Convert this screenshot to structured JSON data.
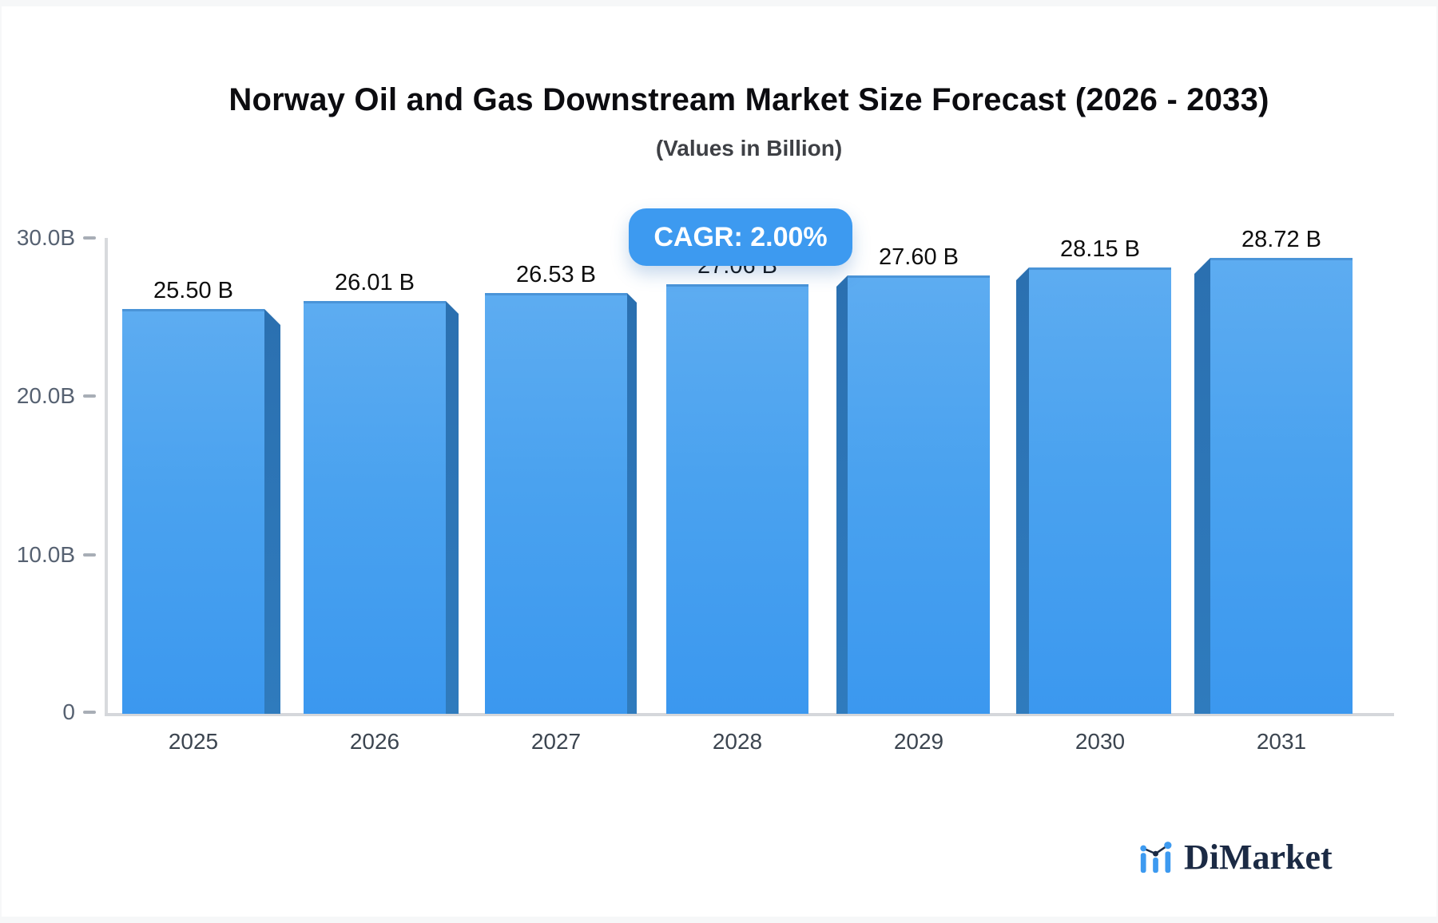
{
  "chart_data": {
    "type": "bar",
    "title": "Norway Oil and Gas Downstream Market Size Forecast (2026 - 2033)",
    "subtitle": "(Values in Billion)",
    "categories": [
      "2025",
      "2026",
      "2027",
      "2028",
      "2029",
      "2030",
      "2031"
    ],
    "values": [
      25.5,
      26.01,
      26.53,
      27.06,
      27.6,
      28.15,
      28.72
    ],
    "value_labels": [
      "25.50 B",
      "26.01 B",
      "26.53 B",
      "27.06 B",
      "27.60 B",
      "28.15 B",
      "28.72 B"
    ],
    "xlabel": "",
    "ylabel": "",
    "ylim": [
      0,
      30
    ],
    "yticks": [
      30,
      20,
      10,
      0
    ],
    "ytick_labels": [
      "30.0B",
      "20.0B",
      "10.0B",
      "0"
    ],
    "grid": false,
    "legend": false,
    "annotation": "CAGR: 2.00%",
    "bar_style": "3d-perspective"
  },
  "badge": {
    "label": "CAGR: 2.00%"
  },
  "colors": {
    "accent_blue": "#3d9af0",
    "bar_face_top": "#5dacf1",
    "bar_face_bottom": "#3b98ef",
    "bar_side": "#2e77b8",
    "axis_line": "#d8dadd",
    "logo_navy": "#1b2a44"
  },
  "logo": {
    "text": "DiMarket",
    "icon": "mini-bar-chart-icon"
  }
}
